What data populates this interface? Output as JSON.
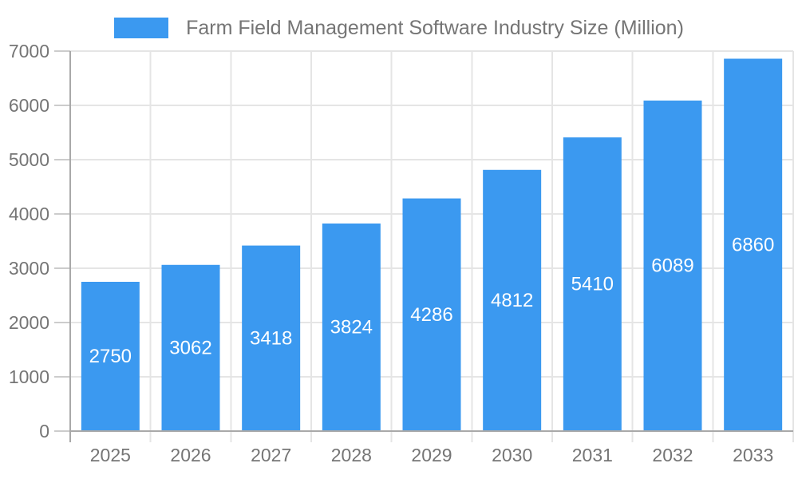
{
  "chart_data": {
    "type": "bar",
    "title": "Farm Field Management Software Industry Size (Million)",
    "categories": [
      "2025",
      "2026",
      "2027",
      "2028",
      "2029",
      "2030",
      "2031",
      "2032",
      "2033"
    ],
    "values": [
      2750,
      3062,
      3418,
      3824,
      4286,
      4812,
      5410,
      6089,
      6860
    ],
    "bar_value_labels": [
      "2750",
      "3062",
      "3418",
      "3824",
      "4286",
      "4812",
      "5410",
      "6089",
      "6860"
    ],
    "xlabel": "",
    "ylabel": "",
    "ylim": [
      0,
      7000
    ],
    "ytick_step": 1000,
    "yticks": [
      "0",
      "1000",
      "2000",
      "3000",
      "4000",
      "5000",
      "6000",
      "7000"
    ],
    "grid": true,
    "legend_position": "top-center",
    "value_label_position": "inside-middle",
    "colors": {
      "bar": "#3B99F0",
      "axis_text": "#757575",
      "legend_text": "#757575",
      "grid_line": "#E5E5E5",
      "axis_line": "#A9A9A9",
      "y_tick": "#CCCCCC",
      "bar_label": "#FFFFFF",
      "background": "#FFFFFF"
    }
  }
}
